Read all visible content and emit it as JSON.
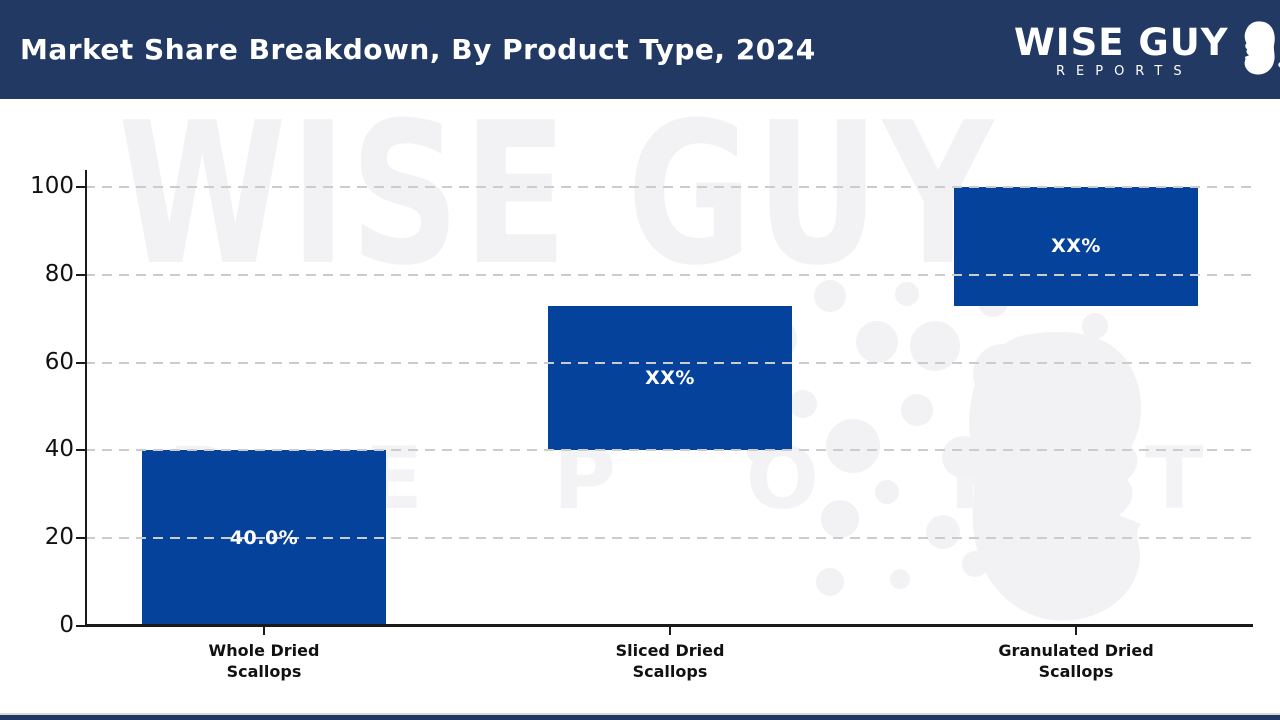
{
  "header": {
    "title": "Market Share Breakdown, By Product Type, 2024",
    "bg_color": "#213963",
    "logo": {
      "line1": "WISE GUY",
      "line2": "REPORTS"
    }
  },
  "watermark": {
    "line1": "WISE GUY",
    "line2": "REPORTS"
  },
  "chart_data": {
    "type": "bar",
    "subtype": "floating-waterfall",
    "title": "Market Share Breakdown, By Product Type, 2024",
    "categories": [
      "Whole Dried Scallops",
      "Sliced Dried Scallops",
      "Granulated Dried Scallops"
    ],
    "category_lines": [
      [
        "Whole Dried",
        "Scallops"
      ],
      [
        "Sliced Dried",
        "Scallops"
      ],
      [
        "Granulated Dried",
        "Scallops"
      ]
    ],
    "segments": [
      {
        "category": "Whole Dried Scallops",
        "start": 0,
        "end": 40,
        "label": "40.0%"
      },
      {
        "category": "Sliced Dried Scallops",
        "start": 40,
        "end": 73,
        "label": "XX%"
      },
      {
        "category": "Granulated Dried Scallops",
        "start": 73,
        "end": 100,
        "label": "XX%"
      }
    ],
    "yticks": [
      0,
      20,
      40,
      60,
      80,
      100
    ],
    "ylim": [
      0,
      100
    ],
    "xlabel": "",
    "ylabel": "",
    "legend": "none",
    "grid": "horizontal-dashed",
    "bar_color": "#04429b",
    "bar_label_color": "#ffffff",
    "axis_color": "#1a1a1a",
    "grid_color": "#cccccc"
  },
  "footer": {
    "bar_color": "#213963"
  }
}
